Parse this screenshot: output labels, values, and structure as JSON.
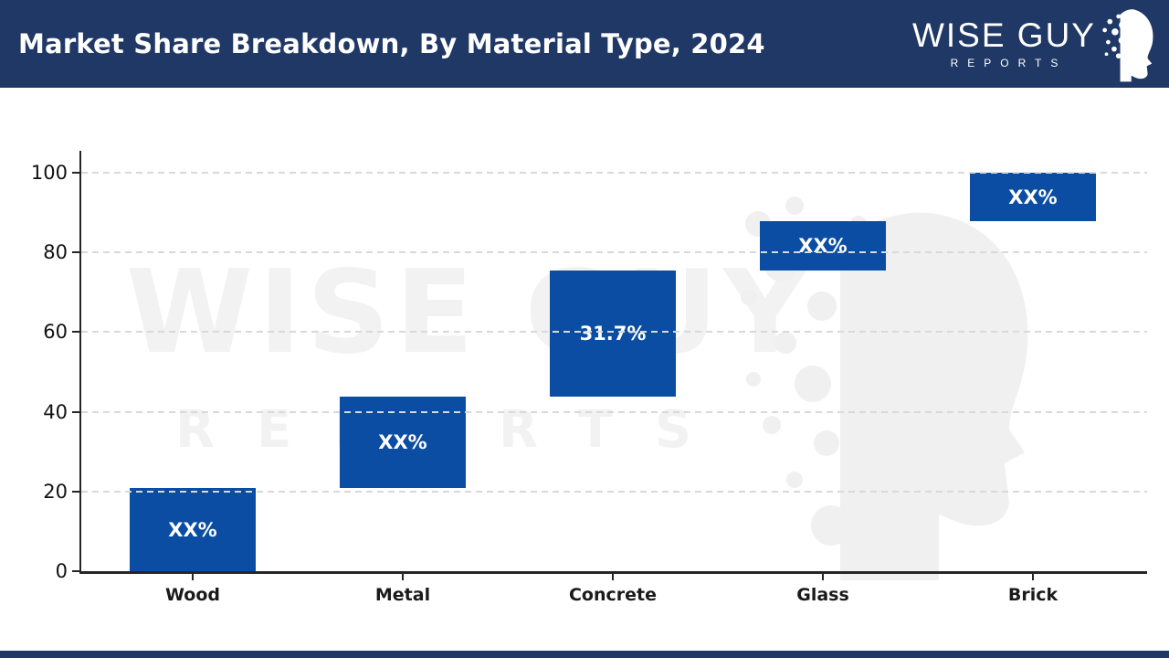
{
  "header": {
    "title": "Market Share Breakdown, By Material Type, 2024",
    "logo": {
      "line1": "WISE GUY",
      "line2": "REPORTS"
    }
  },
  "watermark": {
    "line1": "WISE GUY",
    "line2": "REPORTS"
  },
  "chart_data": {
    "type": "bar",
    "variant": "floating-waterfall",
    "title": "Market Share Breakdown, By Material Type, 2024",
    "categories": [
      "Wood",
      "Metal",
      "Concrete",
      "Glass",
      "Brick"
    ],
    "bars": [
      {
        "category": "Wood",
        "base": 0,
        "top": 20.8,
        "label": "XX%"
      },
      {
        "category": "Metal",
        "base": 20.8,
        "top": 43.7,
        "label": "XX%"
      },
      {
        "category": "Concrete",
        "base": 43.7,
        "top": 75.4,
        "label": "31.7%"
      },
      {
        "category": "Glass",
        "base": 75.4,
        "top": 87.8,
        "label": "XX%"
      },
      {
        "category": "Brick",
        "base": 87.8,
        "top": 100,
        "label": "XX%"
      }
    ],
    "ylim": [
      0,
      100
    ],
    "yticks": [
      0,
      20,
      40,
      60,
      80,
      100
    ],
    "xlabel": "",
    "ylabel": "",
    "grid": {
      "axis": "y",
      "style": "dashed",
      "drawn_over_bars": true
    },
    "legend": null
  },
  "colors": {
    "header_bg": "#1f3865",
    "footer_bg": "#1f3865",
    "bar": "#0b4da2",
    "grid": "#d9d9d9",
    "axis": "#262626",
    "bar_label": "#ffffff",
    "tick_label": "#111111",
    "watermark": "#f2f2f2"
  }
}
